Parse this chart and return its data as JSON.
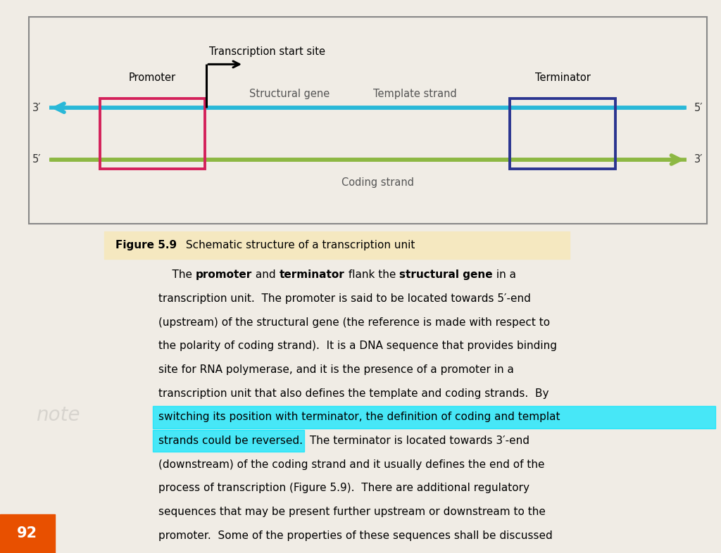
{
  "bg_color": "#f0ece5",
  "diagram_bg": "#ffffff",
  "diagram_border_color": "#888888",
  "cyan_color": "#29b8d8",
  "green_color": "#8db843",
  "pink_color": "#d4215a",
  "navy_color": "#2b3590",
  "highlight_color": "#00e5ff",
  "caption_bg": "#f5e8c0",
  "orange_bg": "#e85000",
  "page_num": "92",
  "fig_bold": "Figure 5.9",
  "fig_rest": " Schematic structure of a transcription unit",
  "label_promoter": "Promoter",
  "label_terminator": "Terminator",
  "label_structural": "Structural gene",
  "label_template": "Template strand",
  "label_coding": "Coding strand",
  "label_tss": "Transcription start site",
  "prime3_left": "3’",
  "prime5_right": "5’",
  "prime5_left": "5’",
  "prime3_right": "3’"
}
